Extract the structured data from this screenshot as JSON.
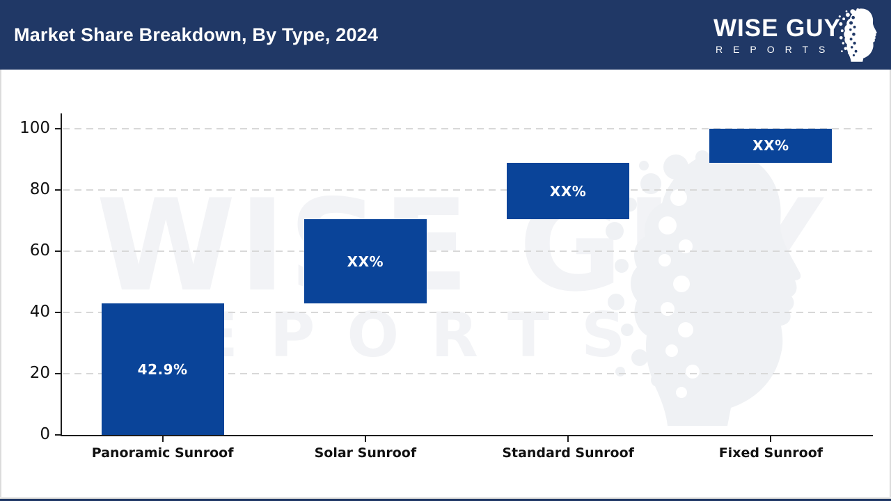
{
  "header": {
    "title": "Market Share Breakdown, By Type, 2024",
    "logo": {
      "main": "WISE GUY",
      "sub": "REPORTS"
    }
  },
  "watermark": {
    "line1": "WISE GUY",
    "line2": "REPORTS"
  },
  "colors": {
    "header_bg": "#203866",
    "bar": "#0a4499",
    "grid": "#d8d8d8",
    "axis": "#1c1c1c",
    "bar_label_text": "#ffffff",
    "watermark": "#f2f3f6"
  },
  "chart_data": {
    "type": "bar",
    "subtype": "waterfall",
    "title": "Market Share Breakdown, By Type, 2024",
    "categories": [
      "Panoramic Sunroof",
      "Solar Sunroof",
      "Standard Sunroof",
      "Fixed Sunroof"
    ],
    "segments": [
      {
        "category": "Panoramic Sunroof",
        "start": 0,
        "end": 42.9,
        "label": "42.9%"
      },
      {
        "category": "Solar Sunroof",
        "start": 42.9,
        "end": 70.4,
        "label": "XX%"
      },
      {
        "category": "Standard Sunroof",
        "start": 70.4,
        "end": 88.9,
        "label": "XX%"
      },
      {
        "category": "Fixed Sunroof",
        "start": 88.9,
        "end": 100,
        "label": "XX%"
      }
    ],
    "xlabel": "",
    "ylabel": "",
    "ylim": [
      0,
      105
    ],
    "yticks": [
      0,
      20,
      40,
      60,
      80,
      100
    ],
    "grid": "horizontal-dashed",
    "legend": false
  }
}
